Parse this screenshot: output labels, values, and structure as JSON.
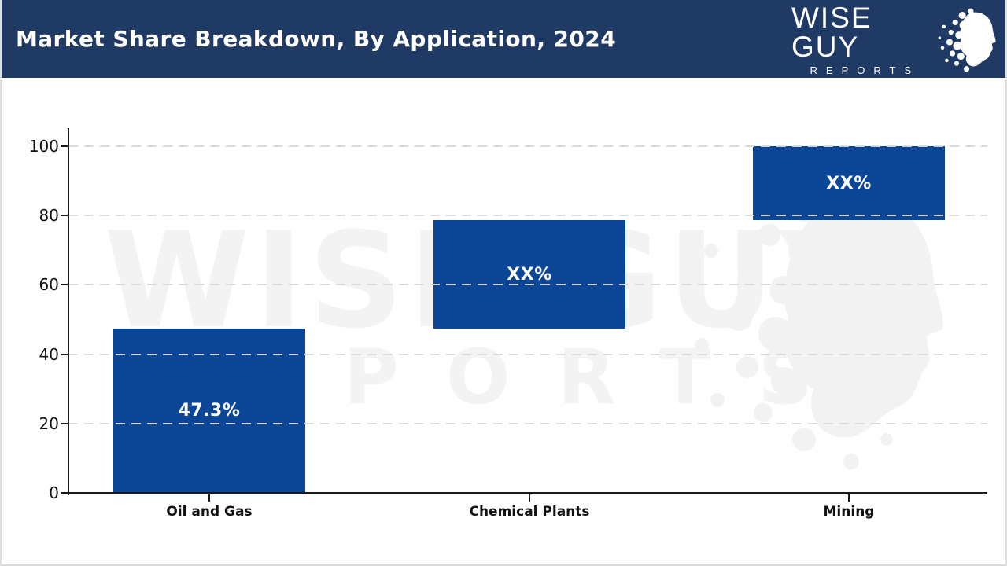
{
  "header": {
    "title": "Market Share Breakdown, By Application, 2024",
    "logo": {
      "line1": "WISE GUY",
      "line2": "REPORTS"
    }
  },
  "watermark": {
    "line1": "WISE GUY",
    "line2": "REPORTS"
  },
  "chart_data": {
    "type": "bar",
    "subtype": "waterfall",
    "title": "Market Share Breakdown, By Application, 2024",
    "categories": [
      "Oil and Gas",
      "Chemical Plants",
      "Mining"
    ],
    "bars": [
      {
        "category": "Oil and Gas",
        "start": 0,
        "end": 47.3,
        "label": "47.3%"
      },
      {
        "category": "Chemical Plants",
        "start": 47.3,
        "end": 78.6,
        "label": "XX%"
      },
      {
        "category": "Mining",
        "start": 78.6,
        "end": 100,
        "label": "XX%"
      }
    ],
    "yticks": [
      0,
      20,
      40,
      60,
      80,
      100
    ],
    "ylim": [
      0,
      100
    ],
    "unit": "%",
    "grid": "horizontal dashed, drawn over bars",
    "legend": "none"
  },
  "colors": {
    "header_bg": "#203A66",
    "bar": "#0A4596",
    "grid": "#D9D9D9",
    "axis": "#1A1A1A",
    "watermark": "#F3F3F3",
    "border": "#DFDFDF"
  }
}
